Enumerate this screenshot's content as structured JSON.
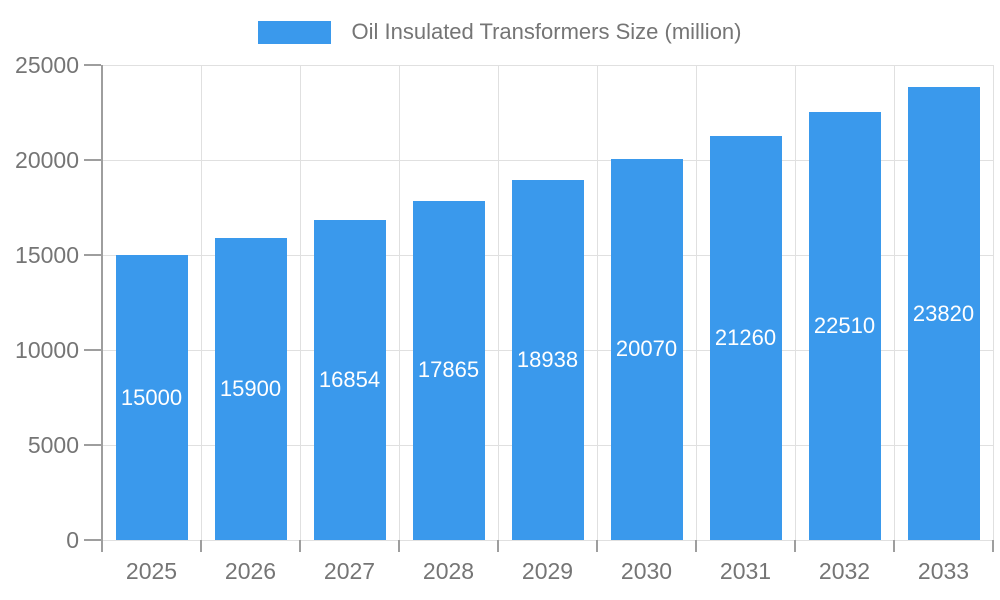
{
  "legend": {
    "label": "Oil Insulated Transformers Size (million)"
  },
  "chart_data": {
    "type": "bar",
    "title": "Oil Insulated Transformers Size (million)",
    "categories": [
      "2025",
      "2026",
      "2027",
      "2028",
      "2029",
      "2030",
      "2031",
      "2032",
      "2033"
    ],
    "values": [
      15000,
      15900,
      16854,
      17865,
      18938,
      20070,
      21260,
      22510,
      23820
    ],
    "xlabel": "",
    "ylabel": "",
    "ylim": [
      0,
      25000
    ],
    "yticks": [
      0,
      5000,
      10000,
      15000,
      20000,
      25000
    ],
    "grid": true,
    "legend_position": "top",
    "bar_color": "#3A99EC",
    "value_label_color": "#ffffff"
  },
  "colors": {
    "axis_text": "#757575",
    "gridline": "#e0e0e0",
    "axis_line": "#9e9e9e",
    "background": "#ffffff"
  }
}
